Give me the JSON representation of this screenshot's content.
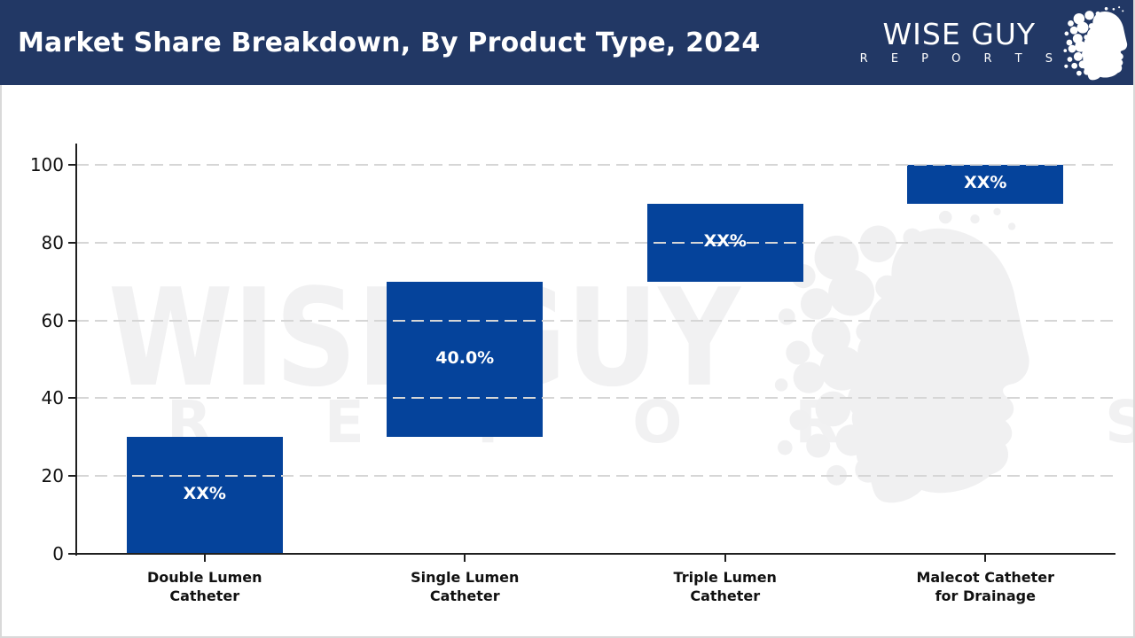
{
  "header": {
    "title": "Market Share Breakdown, By Product Type, 2024",
    "bg_color": "#223865",
    "logo": {
      "line1": "WISE GUY",
      "line2": "R E P O R T S"
    }
  },
  "watermark": {
    "line1": "WISE GUY",
    "line2": "R E P O R T S"
  },
  "chart_data": {
    "type": "bar",
    "subtype": "waterfall",
    "title": "Market Share Breakdown, By Product Type, 2024",
    "categories": [
      [
        "Double Lumen",
        "Catheter"
      ],
      [
        "Single Lumen",
        "Catheter"
      ],
      [
        "Triple Lumen",
        "Catheter"
      ],
      [
        "Malecot Catheter",
        "for Drainage"
      ]
    ],
    "series": [
      {
        "name": "Market Share (%)",
        "bases": [
          0,
          30,
          70,
          90
        ],
        "values": [
          30,
          40,
          20,
          10
        ]
      }
    ],
    "bar_labels": [
      "XX%",
      "40.0%",
      "XX%",
      "XX%"
    ],
    "yticks": [
      0,
      20,
      40,
      60,
      80,
      100
    ],
    "ylim": [
      0,
      100
    ],
    "xlabel": "",
    "ylabel": "",
    "bar_color": "#05439b",
    "label_color": "#ffffff",
    "grid": "horizontal-dashed",
    "grid_color": "#d6d6d6",
    "legend": "none"
  }
}
